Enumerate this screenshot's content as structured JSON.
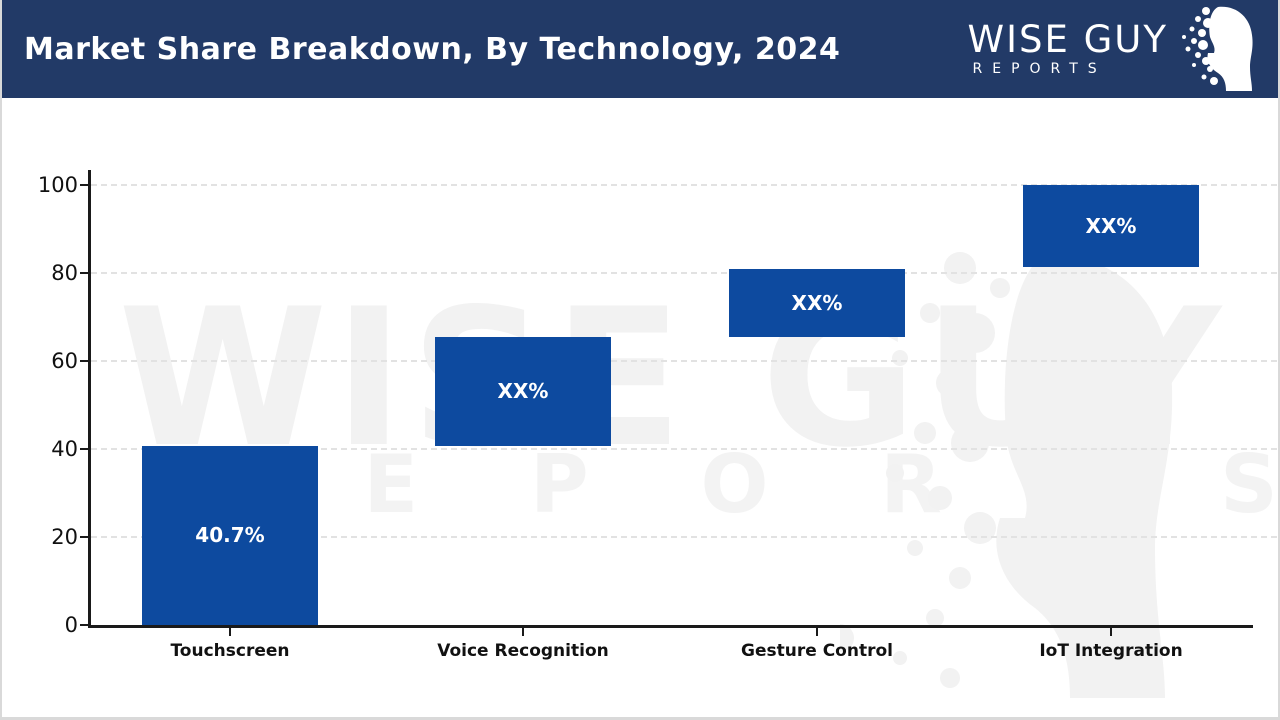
{
  "header": {
    "title": "Market Share Breakdown, By Technology, 2024",
    "background": "#223a67",
    "logo": {
      "line1": "WISE GUY",
      "line2": "REPORTS"
    }
  },
  "watermark": {
    "line1": "WISE GUY",
    "line2": "R E P O R T S"
  },
  "chart_data": {
    "type": "bar",
    "subtype": "floating-waterfall",
    "title": "Market Share Breakdown, By Technology, 2024",
    "categories": [
      "Touchscreen",
      "Voice Recognition",
      "Gesture Control",
      "IoT Integration"
    ],
    "series": [
      {
        "name": "Market Share %",
        "segments": [
          {
            "category": "Touchscreen",
            "start": 0,
            "end": 40.7,
            "label": "40.7%"
          },
          {
            "category": "Voice Recognition",
            "start": 40.7,
            "end": 65.5,
            "label": "XX%"
          },
          {
            "category": "Gesture Control",
            "start": 65.5,
            "end": 81,
            "label": "XX%"
          },
          {
            "category": "IoT Integration",
            "start": 81.4,
            "end": 100,
            "label": "XX%"
          }
        ]
      }
    ],
    "xlabel": "",
    "ylabel": "",
    "ylim": [
      0,
      100
    ],
    "yticks": [
      0,
      20,
      40,
      60,
      80,
      100
    ],
    "grid": "horizontal-dashed",
    "legend": "none",
    "colors": {
      "bar": "#0d4a9f",
      "grid": "#e2e2e2",
      "axis": "#1a1a1a",
      "bar_label": "#ffffff"
    }
  }
}
